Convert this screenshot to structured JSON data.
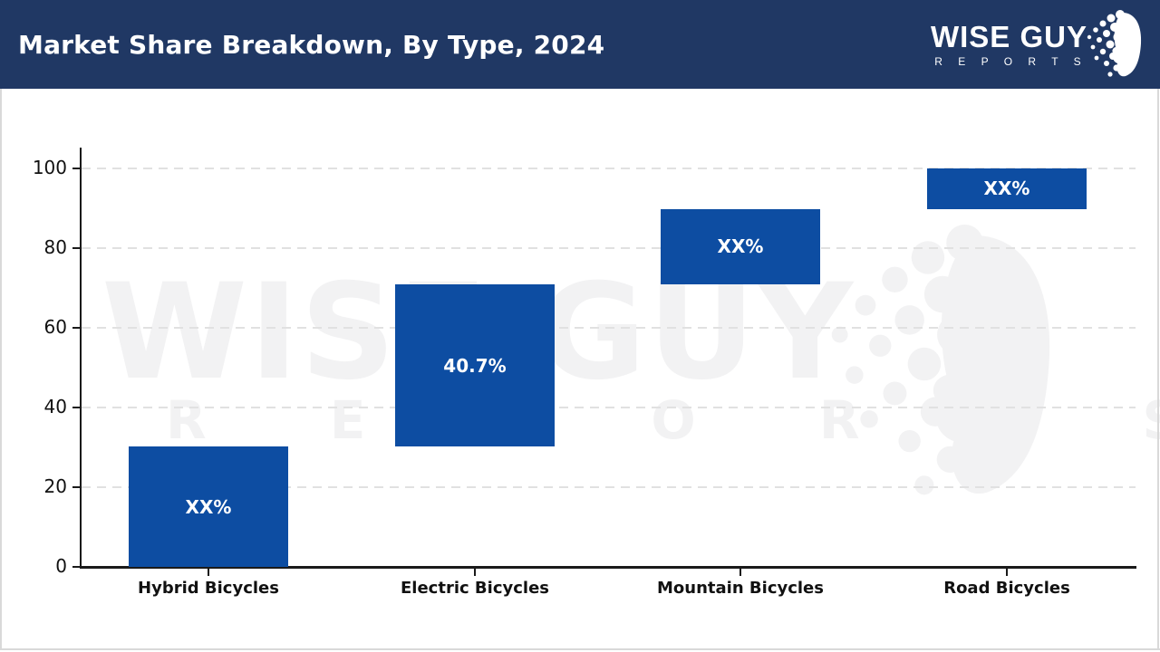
{
  "header": {
    "title": "Market Share Breakdown, By Type, 2024",
    "logo": {
      "line1": "WISE GUY",
      "line2": "R E P O R T S"
    }
  },
  "watermark": {
    "line1": "WISE GUY",
    "line2": "R E P O R T S"
  },
  "chart_data": {
    "type": "bar",
    "subtype": "floating-waterfall",
    "title": "Market Share Breakdown, By Type, 2024",
    "categories": [
      "Hybrid Bicycles",
      "Electric Bicycles",
      "Mountain Bicycles",
      "Road Bicycles"
    ],
    "series": [
      {
        "name": "Hybrid Bicycles",
        "start": 0,
        "end": 30.2,
        "label": "XX%"
      },
      {
        "name": "Electric Bicycles",
        "start": 30.2,
        "end": 70.9,
        "label": "40.7%"
      },
      {
        "name": "Mountain Bicycles",
        "start": 70.9,
        "end": 89.8,
        "label": "XX%"
      },
      {
        "name": "Road Bicycles",
        "start": 89.8,
        "end": 100,
        "label": "XX%"
      }
    ],
    "y_ticks": [
      0,
      20,
      40,
      60,
      80,
      100
    ],
    "ylim": [
      0,
      105
    ],
    "grid": true,
    "legend": false,
    "bar_color": "#0d4da2",
    "colors": {
      "header_bg": "#203864",
      "axis": "#1a1a1a",
      "gridline": "#e1e1e1",
      "watermark": "#f2f2f3",
      "bar_label": "#ffffff"
    }
  }
}
